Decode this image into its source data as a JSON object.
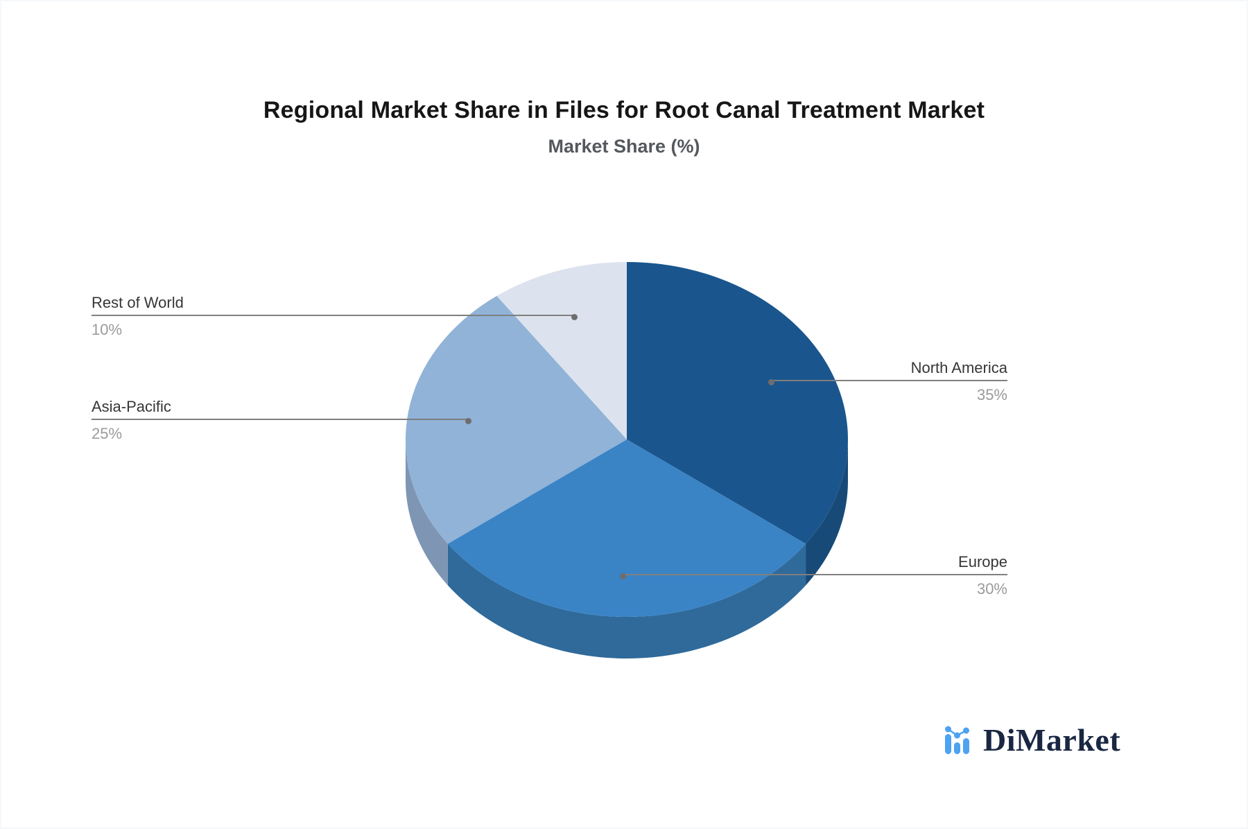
{
  "page": {
    "background": "#ffffff"
  },
  "header": {
    "title": "Regional Market Share in Files for Root Canal Treatment Market",
    "subtitle": "Market Share (%)"
  },
  "chart_data": {
    "type": "pie",
    "is_3d": true,
    "title": "Regional Market Share in Files for Root Canal Treatment Market",
    "subtitle": "Market Share (%)",
    "unit": "%",
    "start_angle": "12-oclock-clockwise",
    "legend_position": "callout-labels",
    "slices": [
      {
        "label": "North America",
        "value": 35,
        "display_value": "35%",
        "color": "#1A568D",
        "side_color": "#174A77",
        "callout_side": "right"
      },
      {
        "label": "Europe",
        "value": 30,
        "display_value": "30%",
        "color": "#3A84C6",
        "side_color": "#2F6A9B",
        "callout_side": "right"
      },
      {
        "label": "Asia-Pacific",
        "value": 25,
        "display_value": "25%",
        "color": "#91B3D7",
        "side_color": "#7E96B4",
        "callout_side": "left"
      },
      {
        "label": "Rest of World",
        "value": 10,
        "display_value": "10%",
        "color": "#DCE3EE",
        "callout_side": "left"
      }
    ],
    "label_color": "#363636",
    "value_color": "#9a9a9a",
    "leader_line_color": "#7f7f7f",
    "leader_dot_color": "#6d6d6d"
  },
  "logo": {
    "text": "DiMarket",
    "icon": "bar-chart-logo-icon",
    "icon_color": "#4DA2F2",
    "text_color": "#1A2742"
  }
}
